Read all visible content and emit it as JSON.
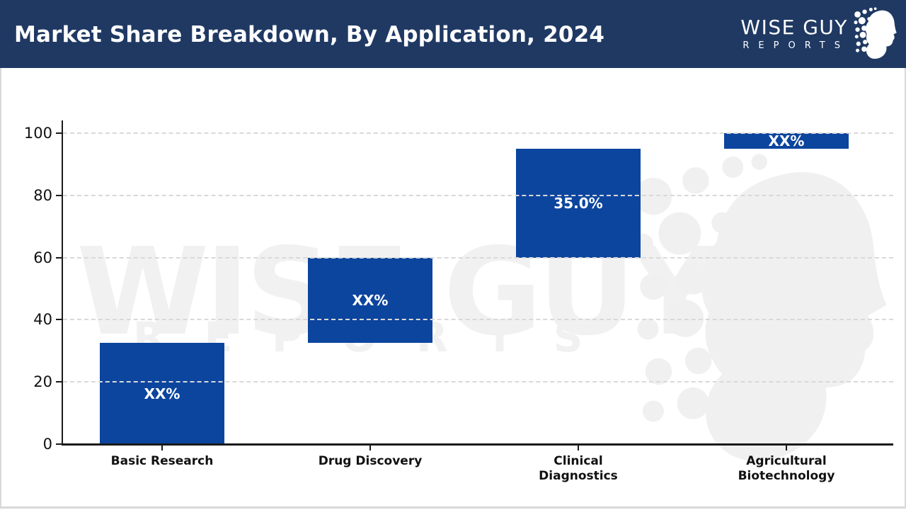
{
  "header": {
    "title": "Market Share Breakdown, By Application, 2024",
    "logo": {
      "line1": "WISE GUY",
      "line2": "REPORTS"
    }
  },
  "watermark": {
    "line1": "WISE GUY",
    "line2": "REPORTS"
  },
  "colors": {
    "header_bg": "#1F3963",
    "bar": "#0C459E",
    "grid": "#D9D9D9",
    "axis": "#1A1A1A",
    "bar_label": "#FFFFFF",
    "watermark": "#F1F1F1",
    "frame": "#D9D9D9"
  },
  "chart_data": {
    "type": "bar",
    "subtype": "waterfall-breakdown",
    "title": "Market Share Breakdown, By Application, 2024",
    "xlabel": "",
    "ylabel": "",
    "ylim": [
      0,
      100
    ],
    "yticks": [
      0,
      20,
      40,
      60,
      80,
      100
    ],
    "grid": "horizontal-dashed",
    "legend": "none",
    "categories": [
      "Basic Research",
      "Drug Discovery",
      "Clinical\nDiagnostics",
      "Agricultural\nBiotechnology"
    ],
    "segments": [
      {
        "category": "Basic Research",
        "start": 0,
        "end": 32.5,
        "value": 32.5,
        "value_label": "XX%"
      },
      {
        "category": "Drug Discovery",
        "start": 32.5,
        "end": 60,
        "value": 27.5,
        "value_label": "XX%"
      },
      {
        "category": "Clinical Diagnostics",
        "start": 60,
        "end": 95,
        "value": 35.0,
        "value_label": "35.0%"
      },
      {
        "category": "Agricultural Biotechnology",
        "start": 95,
        "end": 100,
        "value": 5.0,
        "value_label": "XX%"
      }
    ]
  }
}
